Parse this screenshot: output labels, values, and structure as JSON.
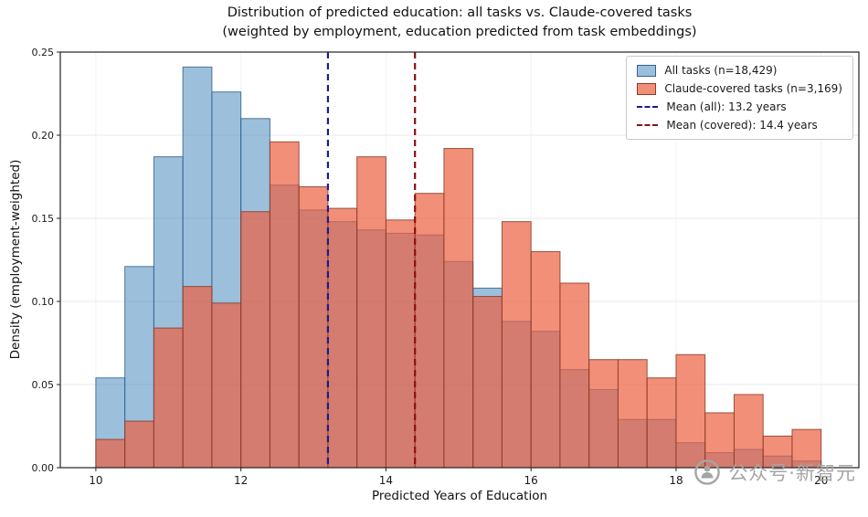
{
  "figure": {
    "title": "Distribution of predicted education: all tasks vs. Claude-covered tasks",
    "subtitle": "(weighted by employment, education predicted from task embeddings)"
  },
  "chart_data": {
    "type": "bar",
    "subtype": "overlaid-histogram",
    "title": "Distribution of predicted education: all tasks vs. Claude-covered tasks",
    "subtitle": "(weighted by employment, education predicted from task embeddings)",
    "xlabel": "Predicted Years of Education",
    "ylabel": "Density (employment-weighted)",
    "xlim": [
      9.51,
      20.52
    ],
    "ylim": [
      0,
      0.25
    ],
    "x_ticks": [
      10,
      12,
      14,
      16,
      18,
      20
    ],
    "y_ticks": [
      0,
      0.05,
      0.1,
      0.15,
      0.2,
      0.25
    ],
    "y_tick_labels": [
      "0.00",
      "0.05",
      "0.10",
      "0.15",
      "0.20",
      "0.25"
    ],
    "grid": true,
    "legend_position": "upper right",
    "bin_start": 10.0,
    "bin_width": 0.4,
    "series": [
      {
        "name": "All tasks (n=18,429)",
        "fill": "#4b8cbf",
        "fill_opacity": 0.55,
        "edge": "#33618f",
        "values": [
          0.054,
          0.121,
          0.187,
          0.241,
          0.226,
          0.21,
          0.17,
          0.155,
          0.148,
          0.143,
          0.141,
          0.14,
          0.124,
          0.108,
          0.088,
          0.082,
          0.059,
          0.047,
          0.029,
          0.029,
          0.015,
          0.009,
          0.011,
          0.007,
          0.004
        ]
      },
      {
        "name": "Claude-covered tasks (n=3,169)",
        "fill": "#ec6040",
        "fill_opacity": 0.7,
        "edge": "#8a3c28",
        "values": [
          0.017,
          0.028,
          0.084,
          0.109,
          0.099,
          0.154,
          0.196,
          0.169,
          0.156,
          0.187,
          0.149,
          0.165,
          0.192,
          0.103,
          0.148,
          0.13,
          0.111,
          0.065,
          0.065,
          0.054,
          0.068,
          0.033,
          0.044,
          0.019,
          0.023
        ]
      }
    ],
    "mean_lines": [
      {
        "label": "Mean (all): 13.2 years",
        "x": 13.2,
        "color": "#1c1c8a"
      },
      {
        "label": "Mean (covered): 14.4 years",
        "x": 14.4,
        "color": "#8b1010"
      }
    ]
  },
  "watermark": {
    "text": "公众号·新智元",
    "icon": "wechat-official-account-icon"
  }
}
